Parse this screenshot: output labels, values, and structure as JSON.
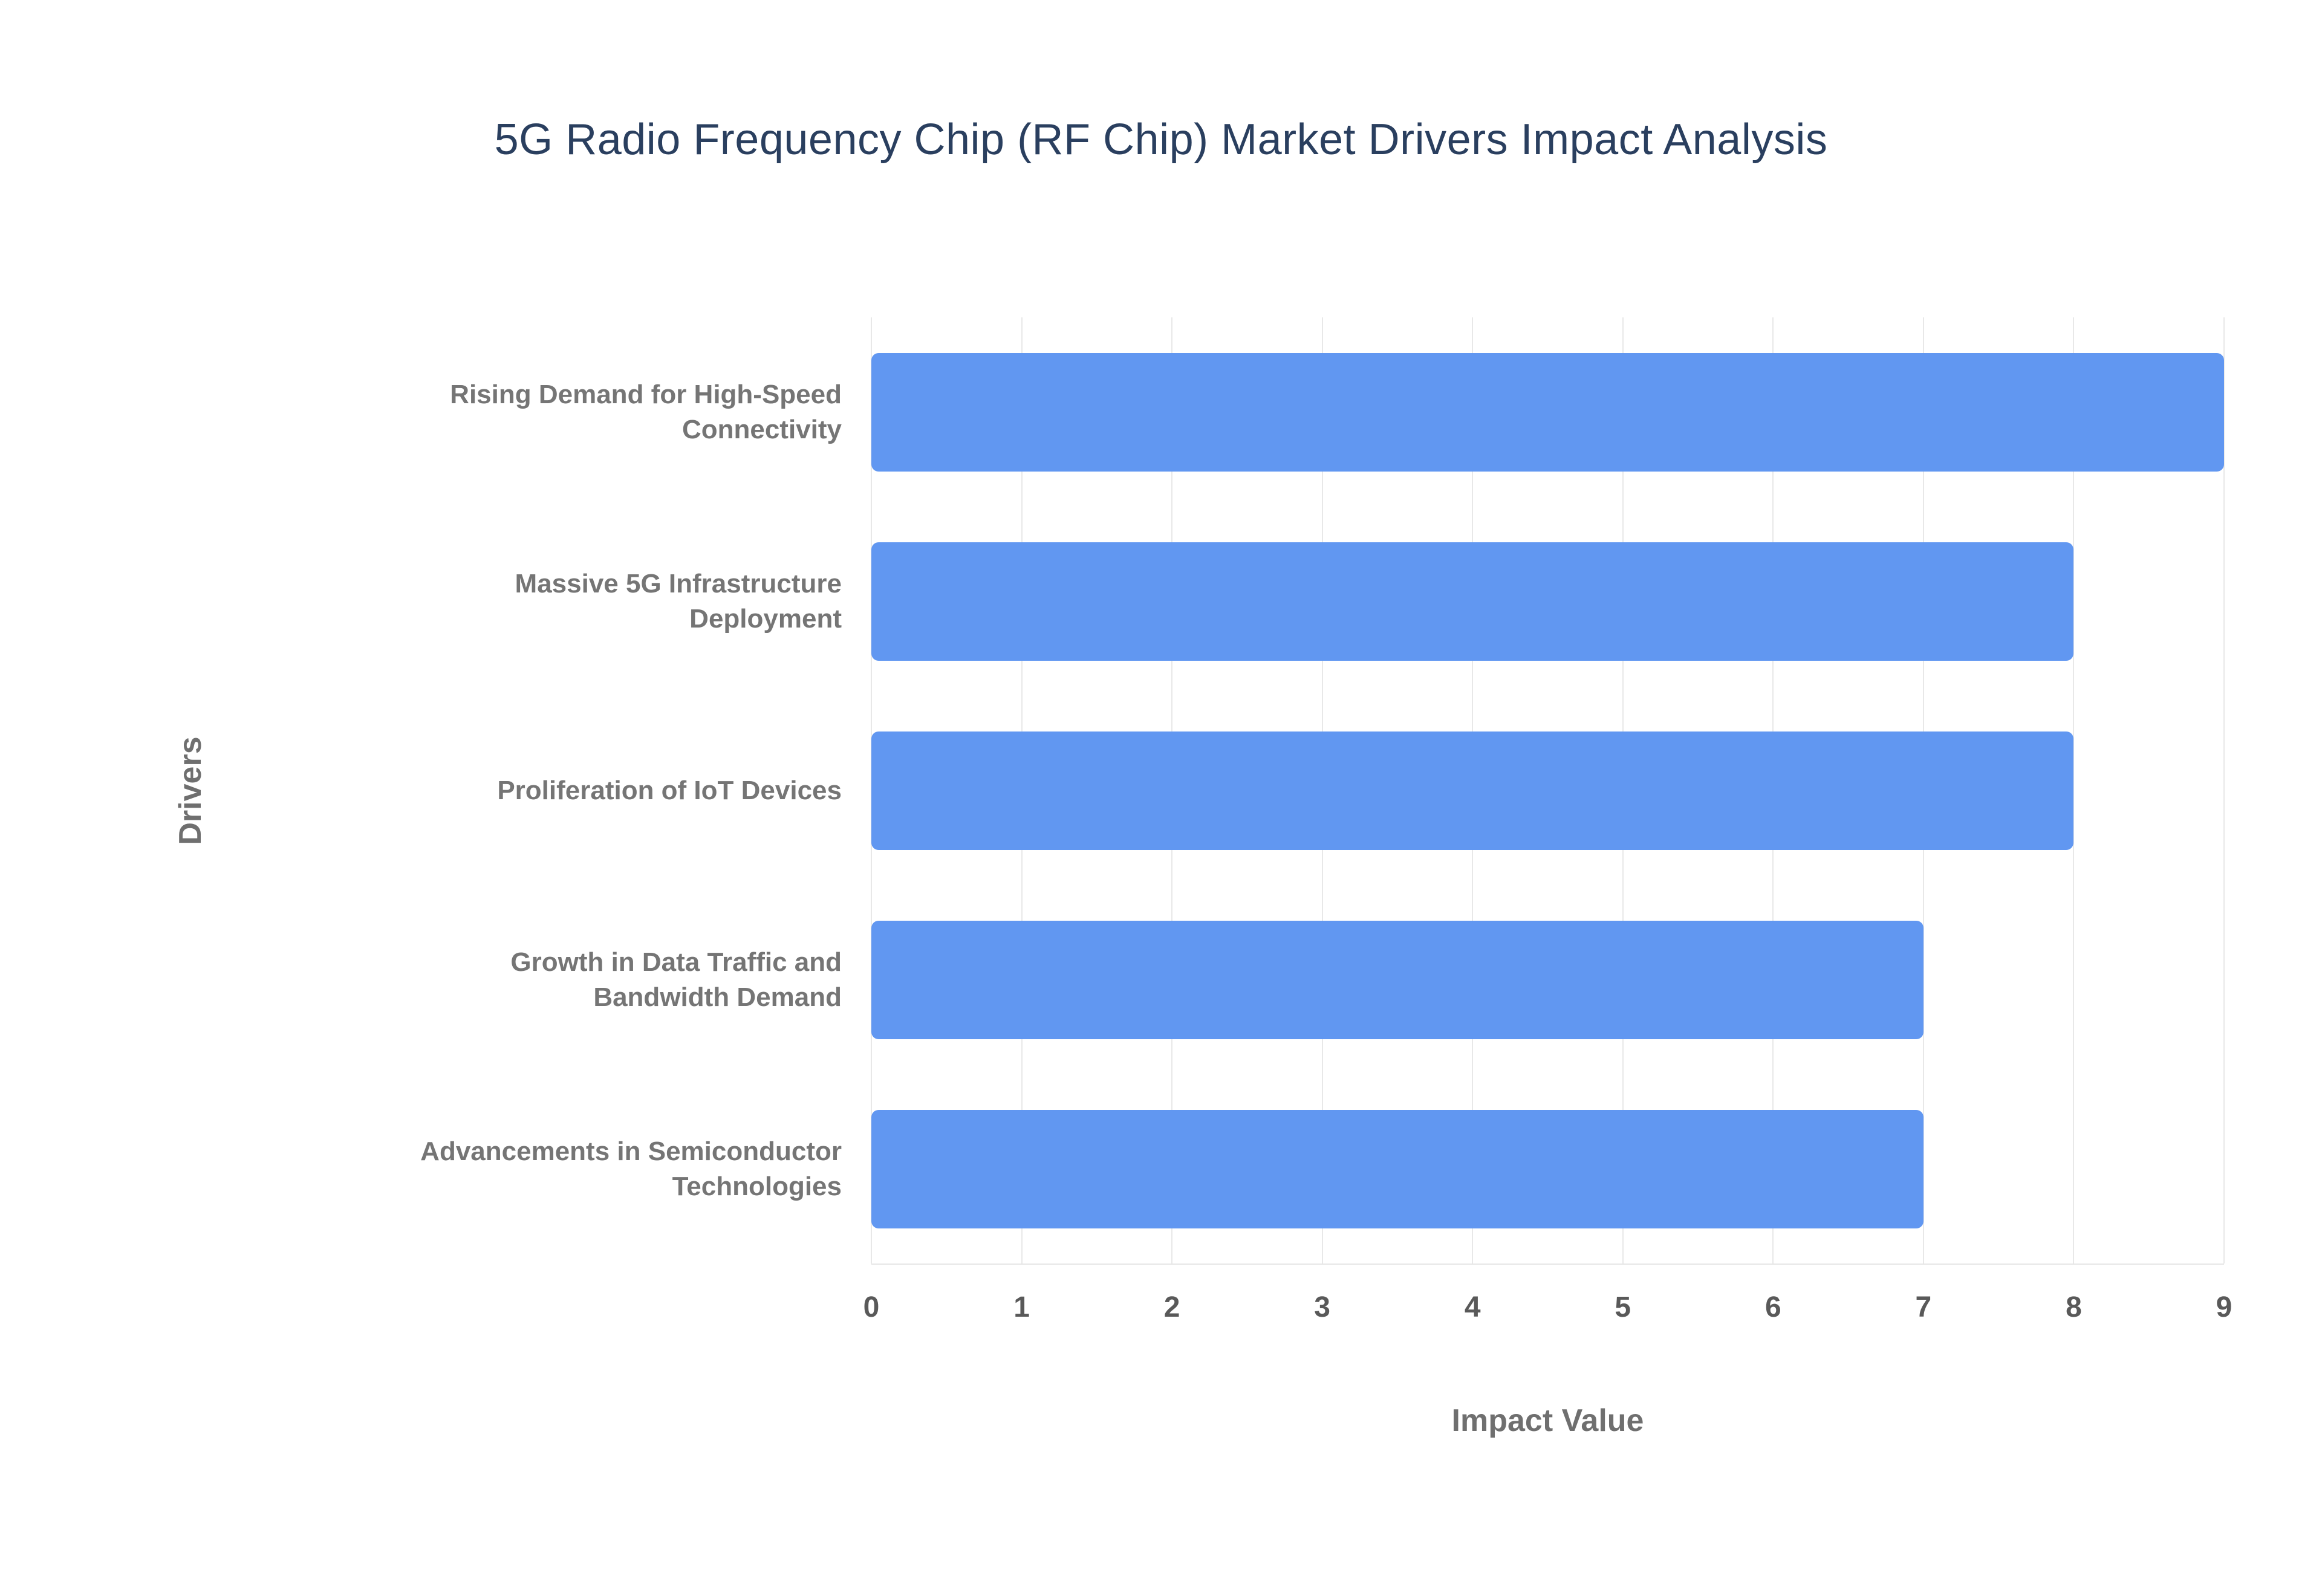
{
  "chart_data": {
    "type": "bar",
    "orientation": "horizontal",
    "title": "5G Radio Frequency Chip (RF Chip) Market Drivers Impact Analysis",
    "xlabel": "Impact Value",
    "ylabel": "Drivers",
    "categories": [
      "Rising Demand for High-Speed Connectivity",
      "Massive 5G Infrastructure Deployment",
      "Proliferation of IoT Devices",
      "Growth in Data Traffic and Bandwidth Demand",
      "Advancements in Semiconductor Technologies"
    ],
    "values": [
      9,
      8,
      8,
      7,
      7
    ],
    "xlim": [
      0,
      9
    ],
    "xticks": [
      0,
      1,
      2,
      3,
      4,
      5,
      6,
      7,
      8,
      9
    ],
    "grid": true,
    "legend": "none",
    "colors": {
      "bar": "#6197F1",
      "title": "#2a3f5f",
      "axis_label": "#6f6f6f",
      "tick_label": "#595959",
      "category_label": "#757575",
      "gridline": "#e8e8e8",
      "background": "#ffffff"
    }
  }
}
